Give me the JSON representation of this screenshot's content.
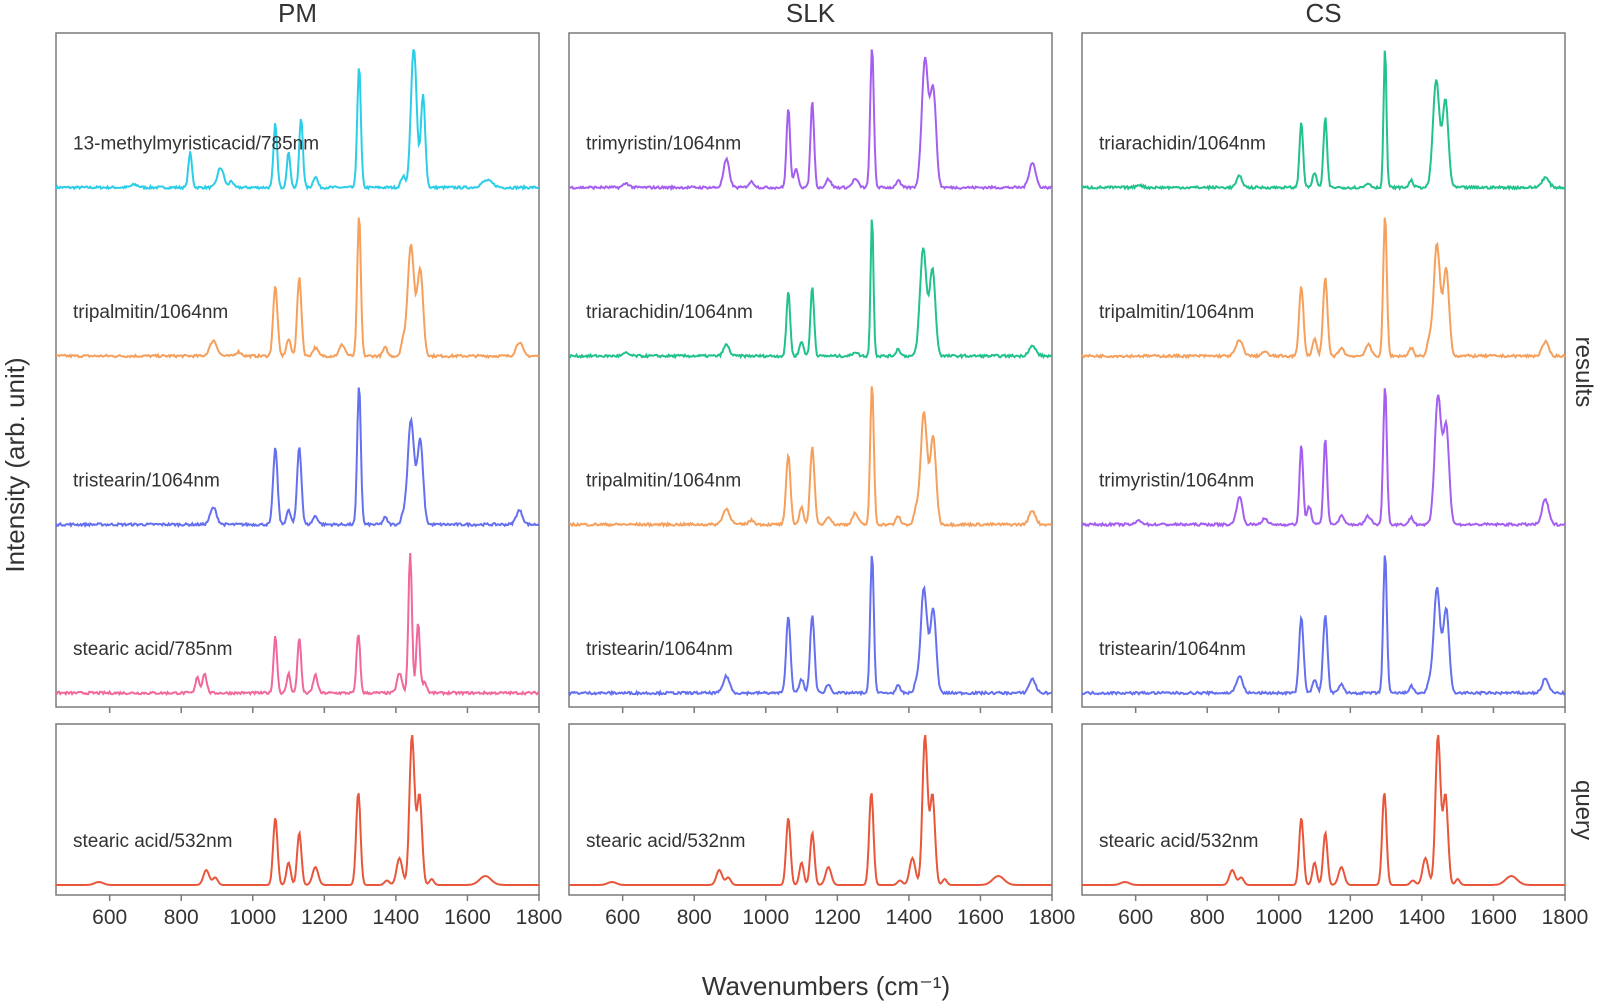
{
  "chart_data": {
    "type": "line",
    "xlabel": "Wavenumbers (cm⁻¹)",
    "ylabel": "Intensity (arb. unit)",
    "xlim": [
      450,
      1800
    ],
    "xticks": [
      600,
      800,
      1000,
      1200,
      1400,
      1600,
      1800
    ],
    "row_labels": {
      "results": "results",
      "query": "query"
    },
    "grid": false,
    "colors": {
      "13-methylmyristicacid": "#2ccde8",
      "tripalmitin": "#f5a05c",
      "tristearin": "#6570ee",
      "stearic_785": "#f0689c",
      "trimyristin": "#a55ff0",
      "triarachidin": "#22c28b",
      "query": "#e8573c",
      "frame": "#7a7a7a"
    },
    "spectra": {
      "13-methylmyristicacid": [
        [
          825,
          0.25,
          5
        ],
        [
          910,
          0.14,
          9
        ],
        [
          940,
          0.05,
          5
        ],
        [
          1063,
          0.46,
          5
        ],
        [
          1100,
          0.25,
          5
        ],
        [
          1135,
          0.5,
          5
        ],
        [
          1175,
          0.08,
          6
        ],
        [
          1297,
          0.87,
          5
        ],
        [
          1420,
          0.08,
          6
        ],
        [
          1450,
          1.0,
          8
        ],
        [
          1476,
          0.66,
          6
        ],
        [
          1655,
          0.05,
          15
        ],
        [
          670,
          0.02,
          10
        ]
      ],
      "tripalmitin": [
        [
          890,
          0.11,
          10
        ],
        [
          960,
          0.03,
          8
        ],
        [
          1063,
          0.5,
          6
        ],
        [
          1100,
          0.12,
          6
        ],
        [
          1130,
          0.56,
          6
        ],
        [
          1175,
          0.06,
          7
        ],
        [
          1250,
          0.08,
          8
        ],
        [
          1297,
          1.0,
          5
        ],
        [
          1370,
          0.06,
          6
        ],
        [
          1420,
          0.1,
          6
        ],
        [
          1442,
          0.8,
          9
        ],
        [
          1468,
          0.62,
          8
        ],
        [
          1745,
          0.1,
          9
        ]
      ],
      "tristearin": [
        [
          890,
          0.12,
          9
        ],
        [
          1063,
          0.55,
          6
        ],
        [
          1100,
          0.1,
          6
        ],
        [
          1130,
          0.56,
          6
        ],
        [
          1175,
          0.06,
          7
        ],
        [
          1297,
          1.0,
          5
        ],
        [
          1370,
          0.05,
          6
        ],
        [
          1420,
          0.06,
          6
        ],
        [
          1442,
          0.75,
          9
        ],
        [
          1468,
          0.6,
          8
        ],
        [
          1745,
          0.1,
          9
        ]
      ],
      "stearic_785": [
        [
          845,
          0.12,
          5
        ],
        [
          865,
          0.14,
          6
        ],
        [
          1063,
          0.41,
          5
        ],
        [
          1100,
          0.14,
          5
        ],
        [
          1130,
          0.4,
          5
        ],
        [
          1175,
          0.13,
          6
        ],
        [
          1295,
          0.43,
          5
        ],
        [
          1410,
          0.14,
          7
        ],
        [
          1440,
          1.0,
          5
        ],
        [
          1462,
          0.5,
          5
        ],
        [
          1480,
          0.08,
          6
        ]
      ],
      "trimyristin": [
        [
          890,
          0.2,
          8
        ],
        [
          960,
          0.04,
          8
        ],
        [
          1063,
          0.57,
          5
        ],
        [
          1085,
          0.13,
          6
        ],
        [
          1130,
          0.62,
          5
        ],
        [
          1175,
          0.06,
          7
        ],
        [
          1250,
          0.06,
          8
        ],
        [
          1297,
          1.0,
          5
        ],
        [
          1370,
          0.05,
          6
        ],
        [
          1445,
          0.92,
          9
        ],
        [
          1468,
          0.7,
          8
        ],
        [
          1745,
          0.18,
          9
        ],
        [
          610,
          0.03,
          8
        ]
      ],
      "triarachidin": [
        [
          890,
          0.08,
          8
        ],
        [
          1063,
          0.47,
          5
        ],
        [
          1100,
          0.1,
          6
        ],
        [
          1130,
          0.5,
          5
        ],
        [
          1250,
          0.03,
          7
        ],
        [
          1297,
          1.0,
          4
        ],
        [
          1370,
          0.05,
          6
        ],
        [
          1440,
          0.77,
          9
        ],
        [
          1466,
          0.62,
          8
        ],
        [
          1745,
          0.07,
          10
        ],
        [
          610,
          0.02,
          8
        ]
      ],
      "query": [
        [
          570,
          0.02,
          12
        ],
        [
          870,
          0.1,
          8
        ],
        [
          895,
          0.05,
          7
        ],
        [
          1063,
          0.45,
          6
        ],
        [
          1100,
          0.15,
          6
        ],
        [
          1130,
          0.35,
          6
        ],
        [
          1175,
          0.12,
          8
        ],
        [
          1295,
          0.62,
          6
        ],
        [
          1375,
          0.03,
          7
        ],
        [
          1410,
          0.18,
          8
        ],
        [
          1445,
          1.0,
          7
        ],
        [
          1466,
          0.6,
          7
        ],
        [
          1500,
          0.04,
          6
        ],
        [
          1650,
          0.06,
          16
        ]
      ]
    },
    "panels": [
      {
        "title": "PM",
        "results": [
          {
            "label": "13-methylmyristicacid/785nm",
            "spectrum": "13-methylmyristicacid"
          },
          {
            "label": "tripalmitin/1064nm",
            "spectrum": "tripalmitin"
          },
          {
            "label": "tristearin/1064nm",
            "spectrum": "tristearin"
          },
          {
            "label": "stearic acid/785nm",
            "spectrum": "stearic_785"
          }
        ],
        "query": {
          "label": "stearic acid/532nm",
          "spectrum": "query"
        }
      },
      {
        "title": "SLK",
        "results": [
          {
            "label": "trimyristin/1064nm",
            "spectrum": "trimyristin"
          },
          {
            "label": "triarachidin/1064nm",
            "spectrum": "triarachidin"
          },
          {
            "label": "tripalmitin/1064nm",
            "spectrum": "tripalmitin"
          },
          {
            "label": "tristearin/1064nm",
            "spectrum": "tristearin"
          }
        ],
        "query": {
          "label": "stearic acid/532nm",
          "spectrum": "query"
        }
      },
      {
        "title": "CS",
        "results": [
          {
            "label": "triarachidin/1064nm",
            "spectrum": "triarachidin"
          },
          {
            "label": "tripalmitin/1064nm",
            "spectrum": "tripalmitin"
          },
          {
            "label": "trimyristin/1064nm",
            "spectrum": "trimyristin"
          },
          {
            "label": "tristearin/1064nm",
            "spectrum": "tristearin"
          }
        ],
        "query": {
          "label": "stearic acid/532nm",
          "spectrum": "query"
        }
      }
    ]
  }
}
